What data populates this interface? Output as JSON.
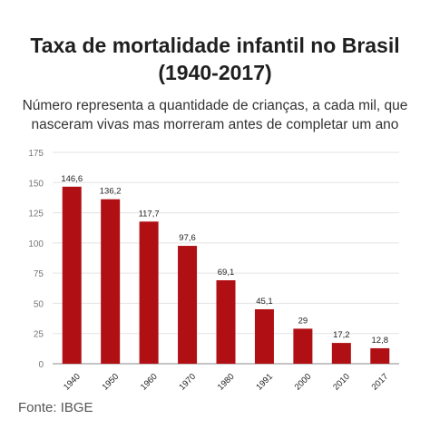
{
  "title_line1": "Taxa de mortalidade infantil no Brasil",
  "title_line2": "(1940-2017)",
  "subtitle_line1": "Número representa a quantidade de crianças, a cada mil, que",
  "subtitle_line2": "nasceram vivas mas morreram antes de completar um ano",
  "source": "Fonte: IBGE",
  "chart_data": {
    "type": "bar",
    "title": "Taxa de mortalidade infantil no Brasil (1940-2017)",
    "categories": [
      "1940",
      "1950",
      "1960",
      "1970",
      "1980",
      "1991",
      "2000",
      "2010",
      "2017"
    ],
    "values": [
      146.6,
      136.2,
      117.7,
      97.6,
      69.1,
      45.1,
      29,
      17.2,
      12.8
    ],
    "value_labels": [
      "146,6",
      "136,2",
      "117,7",
      "97,6",
      "69,1",
      "45,1",
      "29",
      "17,2",
      "12,8"
    ],
    "yticks": [
      0,
      25,
      50,
      75,
      100,
      125,
      150,
      175
    ],
    "ylim": [
      0,
      175
    ],
    "grid": true,
    "bar_color": "#b00f14",
    "xlabel": "",
    "ylabel": ""
  }
}
